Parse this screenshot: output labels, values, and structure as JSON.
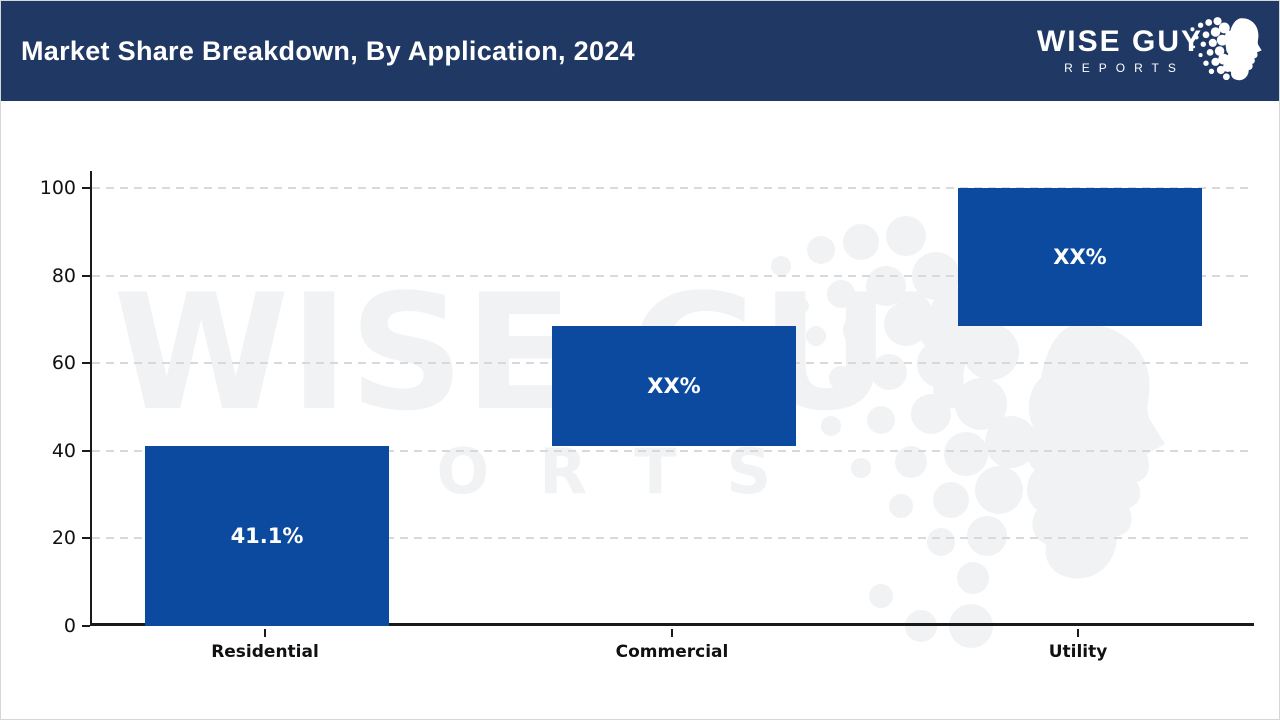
{
  "header": {
    "title": "Market Share Breakdown, By Application, 2024",
    "logo": {
      "name": "Wise Guy Reports",
      "line1": "WISE GUY",
      "line2": "REPORTS"
    }
  },
  "watermark": {
    "line1": "WISE GUY",
    "line2": "REPORTS"
  },
  "colors": {
    "header_bg": "#203864",
    "bar": "#0b4a9f",
    "bar_label": "#ffffff",
    "gridline": "#d9d9d9",
    "axis": "#1a1a1a",
    "tick_label": "#111111",
    "watermark": "#f1f2f4",
    "background": "#ffffff"
  },
  "chart_data": {
    "type": "bar",
    "variant": "waterfall-stacked-percentage",
    "title": "Market Share Breakdown, By Application, 2024",
    "categories": [
      "Residential",
      "Commercial",
      "Utility"
    ],
    "segments": [
      {
        "category": "Residential",
        "start": 0,
        "end": 41.1,
        "label": "41.1%"
      },
      {
        "category": "Commercial",
        "start": 41.1,
        "end": 68.5,
        "label": "XX%"
      },
      {
        "category": "Utility",
        "start": 68.5,
        "end": 100,
        "label": "XX%"
      }
    ],
    "xlabel": "",
    "ylabel": "",
    "ylim": [
      0,
      104
    ],
    "yticks": [
      0,
      20,
      40,
      60,
      80,
      100
    ],
    "grid": "horizontal-dashed",
    "legend": "none"
  }
}
